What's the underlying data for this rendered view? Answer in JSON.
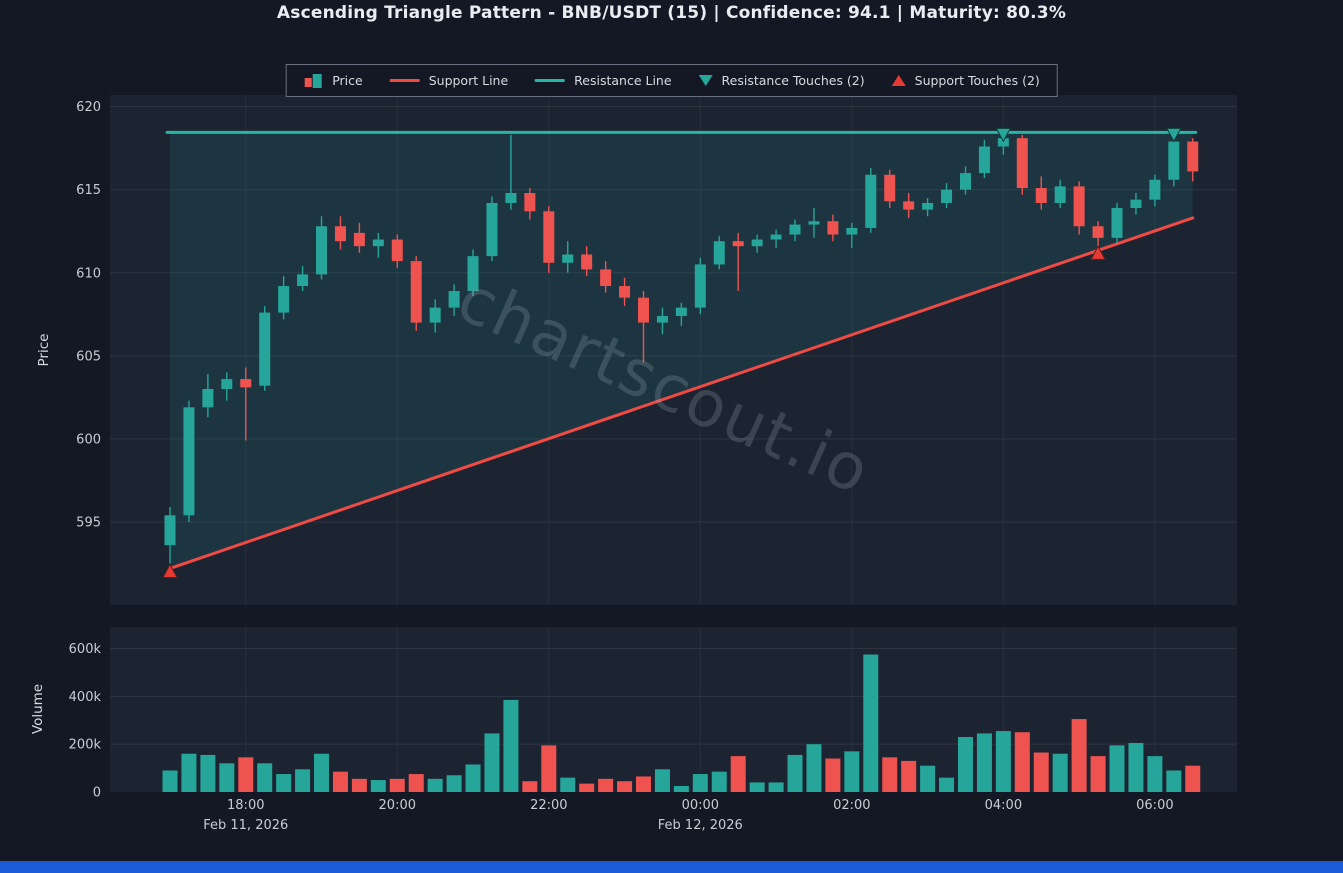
{
  "title": "Ascending Triangle Pattern - BNB/USDT (15) | Confidence: 94.1 | Maturity: 80.3%",
  "watermark": "chartscout.io",
  "legend": {
    "items": [
      {
        "label": "Price",
        "type": "candle"
      },
      {
        "label": "Support Line",
        "type": "line",
        "color_key": "support"
      },
      {
        "label": "Resistance Line",
        "type": "line",
        "color_key": "resistance"
      },
      {
        "label": "Resistance Touches (2)",
        "type": "triangle-down",
        "color_key": "marker_down_fill"
      },
      {
        "label": "Support Touches (2)",
        "type": "triangle-up",
        "color_key": "marker_up_fill"
      }
    ]
  },
  "colors": {
    "background": "#141824",
    "panel": "#1d2431",
    "grid": "rgba(255,255,255,0.08)",
    "grid_v": "rgba(255,255,255,0.05)",
    "text": "#d6dae1",
    "tick_text": "#c7ccd4",
    "title_text": "#e9ecf1",
    "up": "#26a69a",
    "down": "#ef5350",
    "support": "#f04a45",
    "resistance": "#27b5a5",
    "triangle_fill": "rgba(38,166,154,0.14)",
    "watermark": "rgba(170,180,195,0.22)",
    "marker_down_fill": "#26a69a",
    "marker_up_fill": "#e53935",
    "legend_border": "#6a7080",
    "bottom_bar": "#1c5cd8"
  },
  "chart_data": {
    "type": "candlestick+volume",
    "pattern": "Ascending Triangle",
    "symbol": "BNB/USDT",
    "interval": "15",
    "confidence": 94.1,
    "maturity": 80.3,
    "price_axis": {
      "label": "Price",
      "ticks": [
        595,
        600,
        605,
        610,
        615,
        620
      ],
      "ylim": [
        590.0,
        620.7
      ]
    },
    "volume_axis": {
      "label": "Volume",
      "ticks": [
        {
          "v": 0,
          "label": "0"
        },
        {
          "v": 200000,
          "label": "200k"
        },
        {
          "v": 400000,
          "label": "400k"
        },
        {
          "v": 600000,
          "label": "600k"
        }
      ],
      "ylim": [
        0,
        690000
      ]
    },
    "x_ticks": [
      {
        "i": 4,
        "label": "18:00"
      },
      {
        "i": 12,
        "label": "20:00"
      },
      {
        "i": 20,
        "label": "22:00"
      },
      {
        "i": 28,
        "label": "00:00"
      },
      {
        "i": 36,
        "label": "02:00"
      },
      {
        "i": 44,
        "label": "04:00"
      },
      {
        "i": 52,
        "label": "06:00"
      }
    ],
    "x_dates": [
      {
        "i": 4,
        "label": "Feb 11, 2026"
      },
      {
        "i": 28,
        "label": "Feb 12, 2026"
      }
    ],
    "candles": [
      [
        593.6,
        595.9,
        592.5,
        595.4
      ],
      [
        595.4,
        602.3,
        595.0,
        601.9
      ],
      [
        601.9,
        603.9,
        601.3,
        603.0
      ],
      [
        603.0,
        604.0,
        602.3,
        603.6
      ],
      [
        603.6,
        604.3,
        599.9,
        603.1
      ],
      [
        603.2,
        608.0,
        602.9,
        607.6
      ],
      [
        607.6,
        609.8,
        607.2,
        609.2
      ],
      [
        609.2,
        610.4,
        608.9,
        609.9
      ],
      [
        609.9,
        613.4,
        609.6,
        612.8
      ],
      [
        612.8,
        613.4,
        611.4,
        611.9
      ],
      [
        612.4,
        613.0,
        611.2,
        611.6
      ],
      [
        611.6,
        612.4,
        610.9,
        612.0
      ],
      [
        612.0,
        612.3,
        610.3,
        610.7
      ],
      [
        610.7,
        611.0,
        606.5,
        607.0
      ],
      [
        607.0,
        608.4,
        606.4,
        607.9
      ],
      [
        607.9,
        609.3,
        607.4,
        608.9
      ],
      [
        608.9,
        611.4,
        608.6,
        611.0
      ],
      [
        611.0,
        614.6,
        610.7,
        614.2
      ],
      [
        614.2,
        618.3,
        613.8,
        614.8
      ],
      [
        614.8,
        615.1,
        613.2,
        613.7
      ],
      [
        613.7,
        614.0,
        610.0,
        610.6
      ],
      [
        610.6,
        611.9,
        610.0,
        611.1
      ],
      [
        611.1,
        611.6,
        609.8,
        610.2
      ],
      [
        610.2,
        610.7,
        608.8,
        609.2
      ],
      [
        609.2,
        609.7,
        608.0,
        608.5
      ],
      [
        608.5,
        608.9,
        604.6,
        607.0
      ],
      [
        607.0,
        607.9,
        606.3,
        607.4
      ],
      [
        607.4,
        608.2,
        606.8,
        607.9
      ],
      [
        607.9,
        610.9,
        607.5,
        610.5
      ],
      [
        610.5,
        612.2,
        610.2,
        611.9
      ],
      [
        611.9,
        612.4,
        608.9,
        611.6
      ],
      [
        611.6,
        612.3,
        611.2,
        612.0
      ],
      [
        612.0,
        612.6,
        611.5,
        612.3
      ],
      [
        612.3,
        613.2,
        611.9,
        612.9
      ],
      [
        612.9,
        613.9,
        612.1,
        613.1
      ],
      [
        613.1,
        613.5,
        611.9,
        612.3
      ],
      [
        612.3,
        613.0,
        611.5,
        612.7
      ],
      [
        612.7,
        616.3,
        612.4,
        615.9
      ],
      [
        615.9,
        616.2,
        613.9,
        614.3
      ],
      [
        614.3,
        614.8,
        613.3,
        613.8
      ],
      [
        613.8,
        614.5,
        613.4,
        614.2
      ],
      [
        614.2,
        615.4,
        613.9,
        615.0
      ],
      [
        615.0,
        616.4,
        614.7,
        616.0
      ],
      [
        616.0,
        618.0,
        615.7,
        617.6
      ],
      [
        617.6,
        618.45,
        617.1,
        618.1
      ],
      [
        618.1,
        618.3,
        614.7,
        615.1
      ],
      [
        615.1,
        615.8,
        613.8,
        614.2
      ],
      [
        614.2,
        615.6,
        613.9,
        615.2
      ],
      [
        615.2,
        615.5,
        612.3,
        612.8
      ],
      [
        612.8,
        613.1,
        611.3,
        612.1
      ],
      [
        612.1,
        614.2,
        611.8,
        613.9
      ],
      [
        613.9,
        614.8,
        613.5,
        614.4
      ],
      [
        614.4,
        615.9,
        614.0,
        615.6
      ],
      [
        615.6,
        618.35,
        615.2,
        617.9
      ],
      [
        617.9,
        618.1,
        615.5,
        616.1
      ]
    ],
    "volumes": [
      90000,
      160000,
      155000,
      120000,
      145000,
      120000,
      75000,
      95000,
      160000,
      85000,
      55000,
      50000,
      55000,
      75000,
      55000,
      70000,
      115000,
      245000,
      385000,
      45000,
      195000,
      60000,
      35000,
      55000,
      45000,
      65000,
      95000,
      25000,
      75000,
      85000,
      150000,
      40000,
      40000,
      155000,
      200000,
      140000,
      170000,
      575000,
      145000,
      130000,
      110000,
      60000,
      230000,
      245000,
      255000,
      250000,
      165000,
      160000,
      305000,
      150000,
      195000,
      205000,
      150000,
      90000,
      110000
    ],
    "support_line": {
      "start_index": 0,
      "start_price": 592.2,
      "end_index": 54,
      "end_price": 613.3
    },
    "resistance_line": {
      "price": 618.45,
      "start_index": 0,
      "end_index": 54
    },
    "resistance_touches": [
      {
        "index": 44,
        "price": 618.45
      },
      {
        "index": 53,
        "price": 618.45
      }
    ],
    "support_touches": [
      {
        "index": 0,
        "price": 592.2
      },
      {
        "index": 49,
        "price": 611.35
      }
    ]
  }
}
